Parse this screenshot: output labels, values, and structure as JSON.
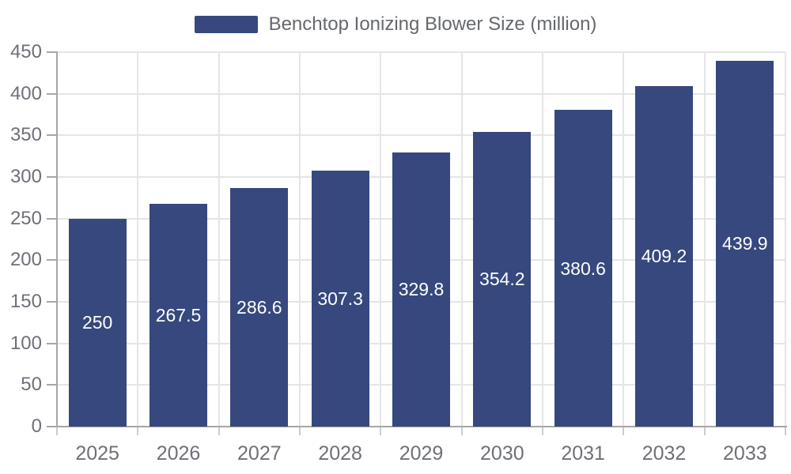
{
  "chart_data": {
    "type": "bar",
    "title": "Benchtop Ionizing Blower Size (million)",
    "categories": [
      "2025",
      "2026",
      "2027",
      "2028",
      "2029",
      "2030",
      "2031",
      "2032",
      "2033"
    ],
    "values": [
      250,
      267.5,
      286.6,
      307.3,
      329.8,
      354.2,
      380.6,
      409.2,
      439.9
    ],
    "value_labels": [
      "250",
      "267.5",
      "286.6",
      "307.3",
      "329.8",
      "354.2",
      "380.6",
      "409.2",
      "439.9"
    ],
    "xlabel": "",
    "ylabel": "",
    "ylim": [
      0,
      450
    ],
    "ytick_step": 50,
    "yticks": [
      0,
      50,
      100,
      150,
      200,
      250,
      300,
      350,
      400,
      450
    ],
    "grid": true,
    "legend_position": "top-center",
    "colors": {
      "bar": "#36487E",
      "grid_line": "#E5E5E5",
      "axis_line": "#A6A6A6",
      "x_tick": "#C9CCD6",
      "tick_label": "#6E7079",
      "legend_text": "#65686C",
      "value_label": "#FFFFFF",
      "background": "#FFFFFF"
    }
  }
}
